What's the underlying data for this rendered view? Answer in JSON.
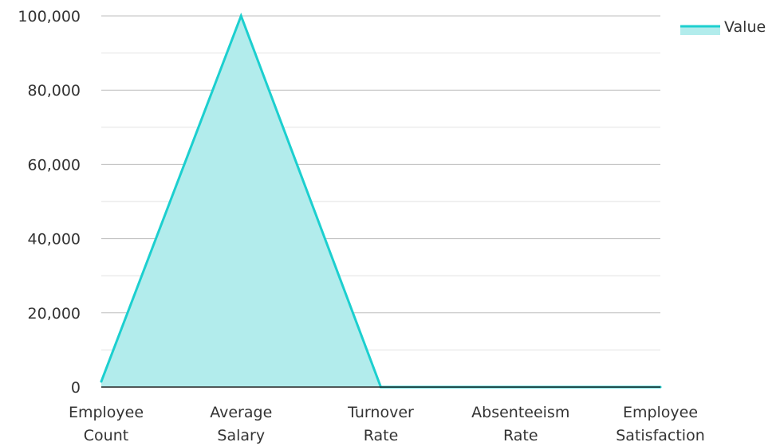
{
  "chart_data": {
    "type": "area",
    "categories": [
      [
        "Employee",
        "Count"
      ],
      [
        "Average",
        "Salary"
      ],
      [
        "Turnover",
        "Rate"
      ],
      [
        "Absenteeism",
        "Rate"
      ],
      [
        "Employee",
        "Satisfaction"
      ]
    ],
    "series": [
      {
        "name": "Value",
        "values": [
          1500,
          100000,
          0,
          0,
          0
        ]
      }
    ],
    "y_ticks": [
      "0",
      "20,000",
      "40,000",
      "60,000",
      "80,000",
      "100,000"
    ],
    "ylim": [
      0,
      100000
    ],
    "grid": true,
    "legend_position": "top-right",
    "colors": {
      "line": "#1ccfcf",
      "fill": "#b2ecec",
      "grid_major": "#bdbdbd",
      "grid_minor": "#e2e2e2",
      "axis": "#222222"
    }
  }
}
